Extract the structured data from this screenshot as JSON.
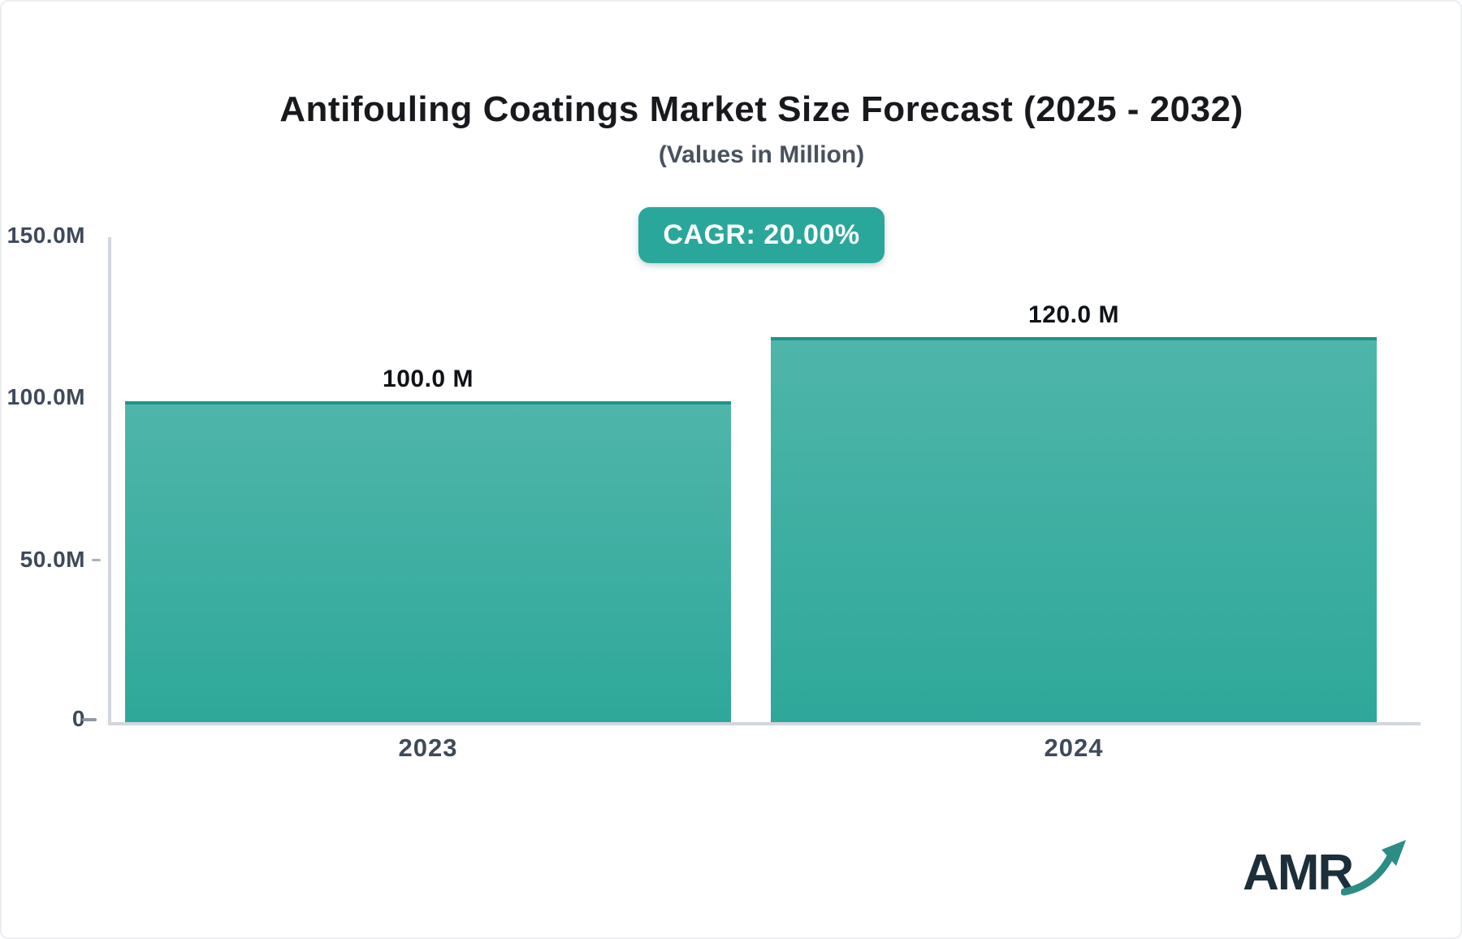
{
  "header": {
    "title": "Antifouling Coatings Market Size Forecast (2025 - 2032)",
    "subtitle": "(Values in Million)",
    "cagr_badge": "CAGR: 20.00%"
  },
  "chart_data": {
    "type": "bar",
    "title": "Antifouling Coatings Market Size Forecast (2025 - 2032)",
    "subtitle": "(Values in Million)",
    "cagr": "20.00%",
    "categories": [
      "2023",
      "2024"
    ],
    "values": [
      100.0,
      120.0
    ],
    "value_labels": [
      "100.0 M",
      "120.0 M"
    ],
    "ylim": [
      0,
      150
    ],
    "yticks": [
      "150.0M",
      "100.0M",
      "50.0M",
      "0"
    ],
    "grid": "off",
    "legend": "none",
    "xlabel": "",
    "ylabel": ""
  },
  "footer": {
    "logo_text": "AMR"
  },
  "colors": {
    "accent_teal": "#2aa79b",
    "bar_gradient_top": "#4fb5aa",
    "bar_gradient_bottom": "#2ea89a",
    "bar_border_top": "#1f9488",
    "axis_line": "#d3d6dd",
    "label_dark": "#3e4a5a",
    "logo_navy": "#1c2e39",
    "logo_arrow_teal": "#2b8d86"
  }
}
